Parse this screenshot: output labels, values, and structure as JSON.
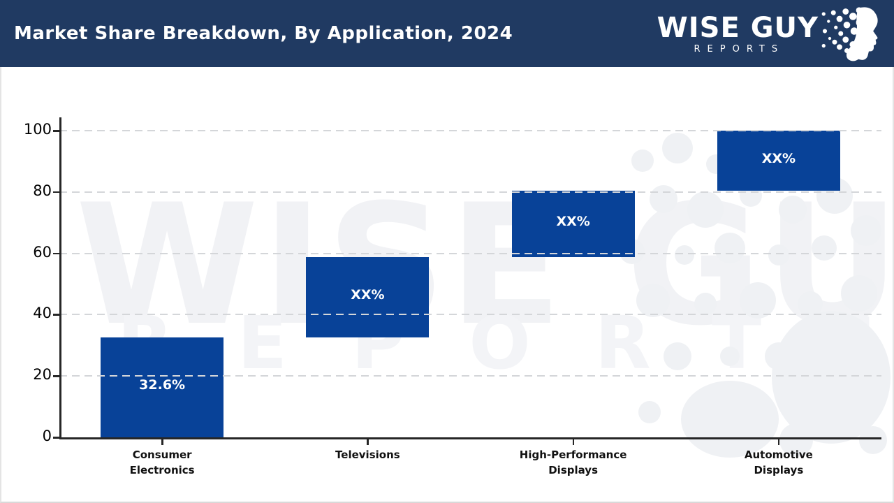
{
  "header": {
    "title": "Market Share Breakdown, By Application, 2024",
    "logo": {
      "line1": "WISE GUY",
      "line2": "REPORTS"
    }
  },
  "watermark": {
    "line1": "WISE GUY",
    "line2": "REPORTS"
  },
  "chart_data": {
    "type": "bar",
    "subtype": "waterfall",
    "title": "Market Share Breakdown, By Application, 2024",
    "xlabel": "",
    "ylabel": "",
    "ylim": [
      0,
      100
    ],
    "yticks": [
      0,
      20,
      40,
      60,
      80,
      100
    ],
    "grid": true,
    "legend": false,
    "bar_color": "#084298",
    "label_color": "#ffffff",
    "categories": [
      "Consumer Electronics",
      "Televisions",
      "High-Performance Displays",
      "Automotive Displays"
    ],
    "segments": [
      {
        "category_lines": [
          "Consumer",
          "Electronics"
        ],
        "start": 0,
        "end": 32.6,
        "label": "32.6%"
      },
      {
        "category_lines": [
          "Televisions"
        ],
        "start": 32.6,
        "end": 58.8,
        "label": "XX%"
      },
      {
        "category_lines": [
          "High-Performance",
          "Displays"
        ],
        "start": 58.8,
        "end": 80.4,
        "label": "XX%"
      },
      {
        "category_lines": [
          "Automotive",
          "Displays"
        ],
        "start": 80.4,
        "end": 100,
        "label": "XX%"
      }
    ]
  }
}
